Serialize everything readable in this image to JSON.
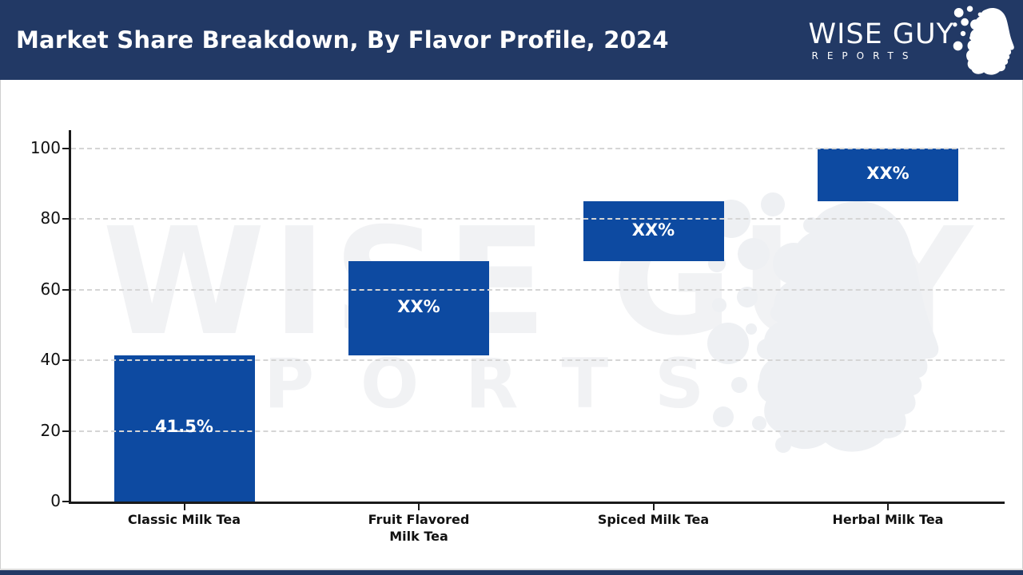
{
  "header": {
    "title": "Market Share Breakdown, By Flavor Profile, 2024",
    "bg_color": "#223965",
    "logo": {
      "line1": "WISE GUY",
      "line2": "REPORTS"
    }
  },
  "watermark": {
    "line1": "WISE GUY",
    "line2": "PORTS"
  },
  "chart_data": {
    "type": "bar",
    "variant": "waterfall-floating-bars",
    "title": "Market Share Breakdown, By Flavor Profile, 2024",
    "categories": [
      "Classic Milk Tea",
      "Fruit Flavored\nMilk Tea",
      "Spiced Milk Tea",
      "Herbal Milk Tea"
    ],
    "bars": [
      {
        "category": "Classic Milk Tea",
        "label": "41.5%",
        "start": 0,
        "end": 41.5
      },
      {
        "category": "Fruit Flavored Milk Tea",
        "label": "XX%",
        "start": 41.5,
        "end": 68
      },
      {
        "category": "Spiced Milk Tea",
        "label": "XX%",
        "start": 68,
        "end": 85
      },
      {
        "category": "Herbal Milk Tea",
        "label": "XX%",
        "start": 85,
        "end": 100
      }
    ],
    "ylim": [
      0,
      105
    ],
    "yticks": [
      0,
      20,
      40,
      60,
      80,
      100
    ],
    "xlabel": "",
    "ylabel": "",
    "legend": "none",
    "grid": "horizontal-dashed",
    "bar_color": "#0d4aa1",
    "bar_label_color": "#ffffff",
    "axis_color": "#1a1a1a"
  }
}
